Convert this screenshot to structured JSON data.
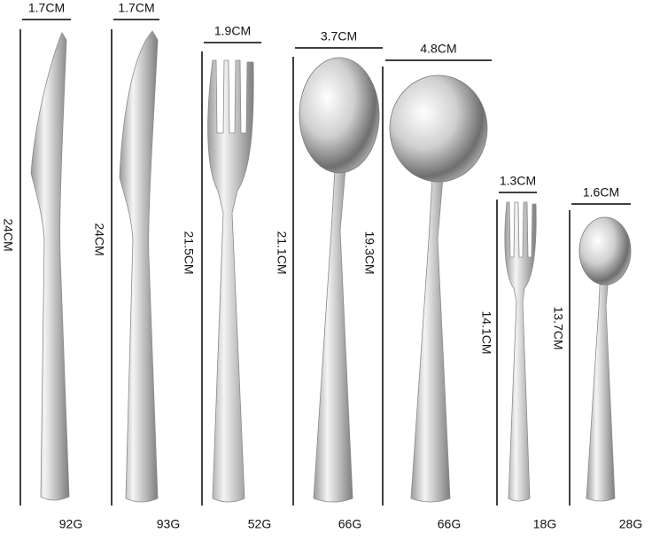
{
  "items": [
    {
      "width": "1.7CM",
      "length": "24CM",
      "weight": "92G"
    },
    {
      "width": "1.7CM",
      "length": "24CM",
      "weight": "93G"
    },
    {
      "width": "1.9CM",
      "length": "21.5CM",
      "weight": "52G"
    },
    {
      "width": "3.7CM",
      "length": "21.1CM",
      "weight": "66G"
    },
    {
      "width": "4.8CM",
      "length": "19.3CM",
      "weight": "66G"
    },
    {
      "width": "1.3CM",
      "length": "14.1CM",
      "weight": "18G"
    },
    {
      "width": "1.6CM",
      "length": "13.7CM",
      "weight": "28G"
    }
  ]
}
